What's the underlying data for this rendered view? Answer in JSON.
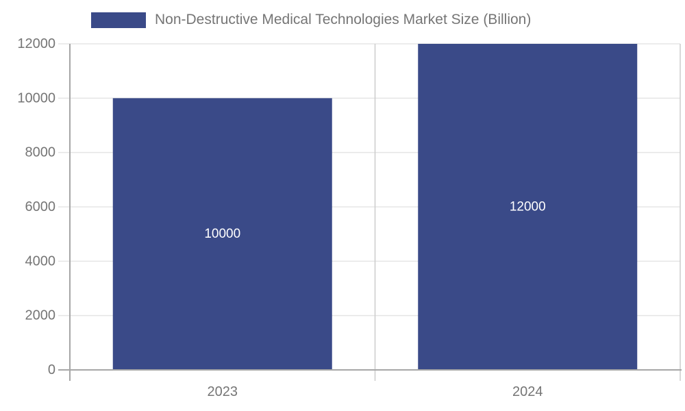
{
  "chart_data": {
    "type": "bar",
    "title": "Non-Destructive Medical Technologies Market Size (Billion)",
    "categories": [
      "2023",
      "2024"
    ],
    "values": [
      10000,
      12000
    ],
    "bar_value_labels": [
      "10000",
      "12000"
    ],
    "xlabel": "",
    "ylabel": "",
    "ylim": [
      0,
      12000
    ],
    "yticks": [
      0,
      2000,
      4000,
      6000,
      8000,
      10000,
      12000
    ],
    "ytick_labels": [
      "0",
      "2000",
      "4000",
      "6000",
      "8000",
      "10000",
      "12000"
    ],
    "grid": true,
    "legend_position": "top-left",
    "colors": {
      "bar": "#3a4a88",
      "bar_value_text": "#ffffff",
      "axis_text": "#757575",
      "gridline": "#e5e5e5",
      "axis_line": "#a6a6a6",
      "separator_line": "#cccccc",
      "background": "#ffffff"
    }
  }
}
